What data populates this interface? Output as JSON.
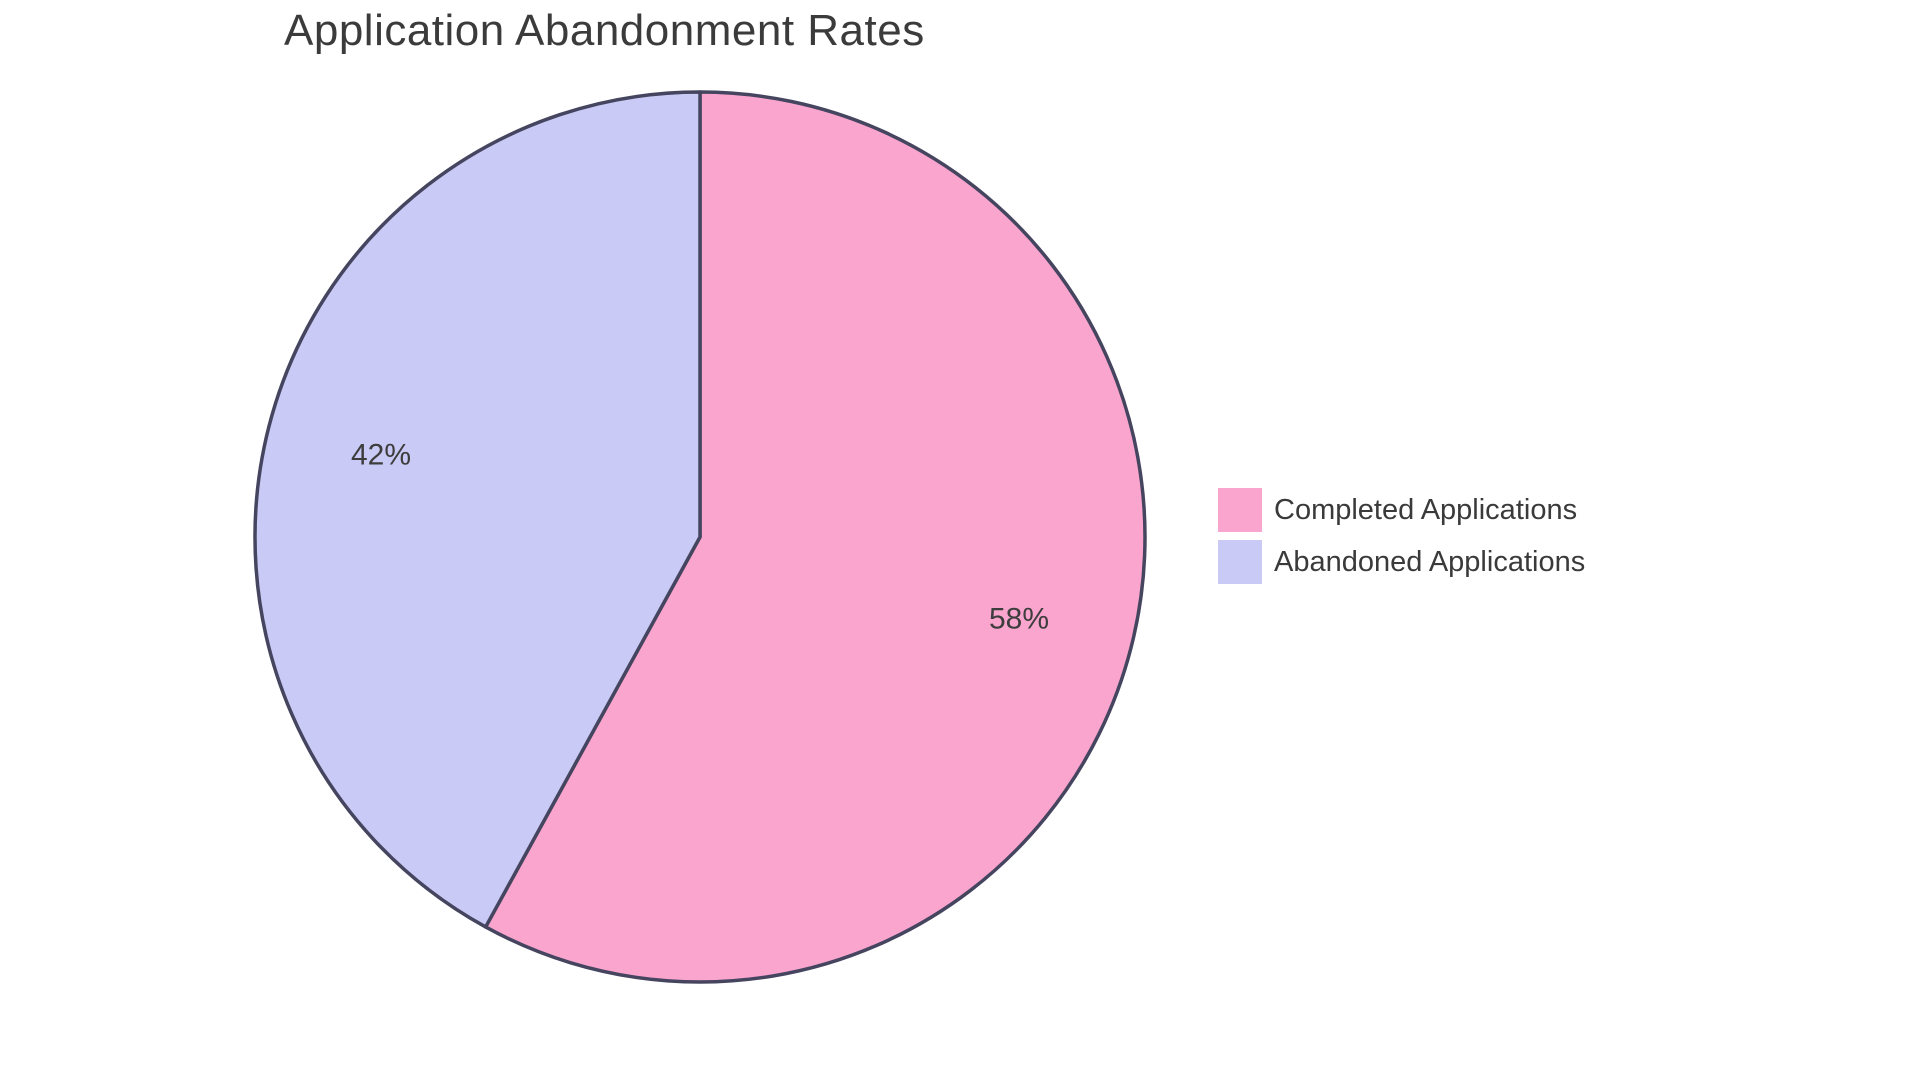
{
  "page": {
    "background": "#FFFFFF"
  },
  "chart_data": {
    "type": "pie",
    "title": "Application Abandonment Rates",
    "slices": [
      {
        "label": "Completed Applications",
        "value": 58,
        "display_label": "58%",
        "color": "#FAA5CE"
      },
      {
        "label": "Abandoned Applications",
        "value": 42,
        "display_label": "42%",
        "color": "#C9CAF5"
      }
    ],
    "start_angle": "top",
    "direction": "clockwise",
    "slice_border_color": "#454560",
    "value_label_color": "#3D3D3D",
    "title_color": "#3B3B3B",
    "legend_text_color": "#3A3A3A",
    "legend_position": "right-middle",
    "background": "#FFFFFF"
  }
}
